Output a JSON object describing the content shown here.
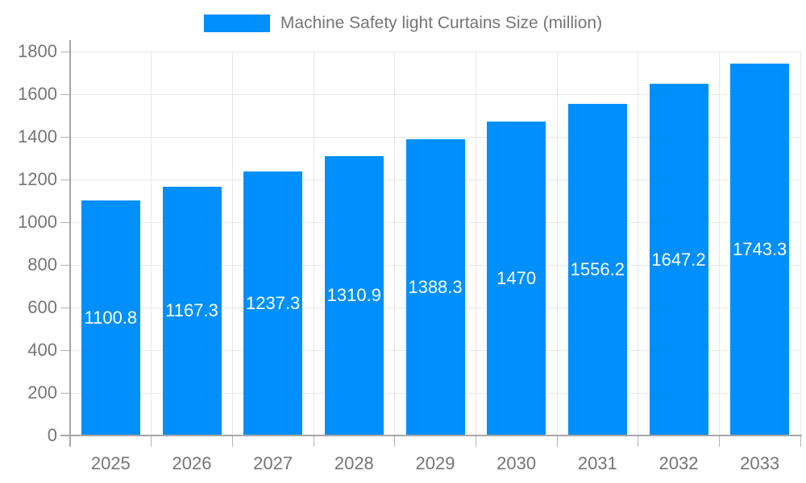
{
  "chart_data": {
    "type": "bar",
    "legend": "Machine Safety light Curtains Size (million)",
    "categories": [
      "2025",
      "2026",
      "2027",
      "2028",
      "2029",
      "2030",
      "2031",
      "2032",
      "2033"
    ],
    "values": [
      1100.8,
      1167.3,
      1237.3,
      1310.9,
      1388.3,
      1470,
      1556.2,
      1647.2,
      1743.3
    ],
    "value_labels": [
      "1100.8",
      "1167.3",
      "1237.3",
      "1310.9",
      "1388.3",
      "1470",
      "1556.2",
      "1647.2",
      "1743.3"
    ],
    "ytick_labels": [
      "0",
      "200",
      "400",
      "600",
      "800",
      "1000",
      "1200",
      "1400",
      "1600",
      "1800"
    ],
    "ylim": [
      0,
      1800
    ],
    "ytick_step": 200,
    "grid": true,
    "legend_position": "top",
    "colors": {
      "bar": "#008FFB",
      "grid": "#e7e7e7",
      "axis": "#a6a6a6",
      "tick": "#b3b3b3",
      "text": "#757575",
      "value_label": "#ffffff",
      "background": "#ffffff"
    }
  }
}
